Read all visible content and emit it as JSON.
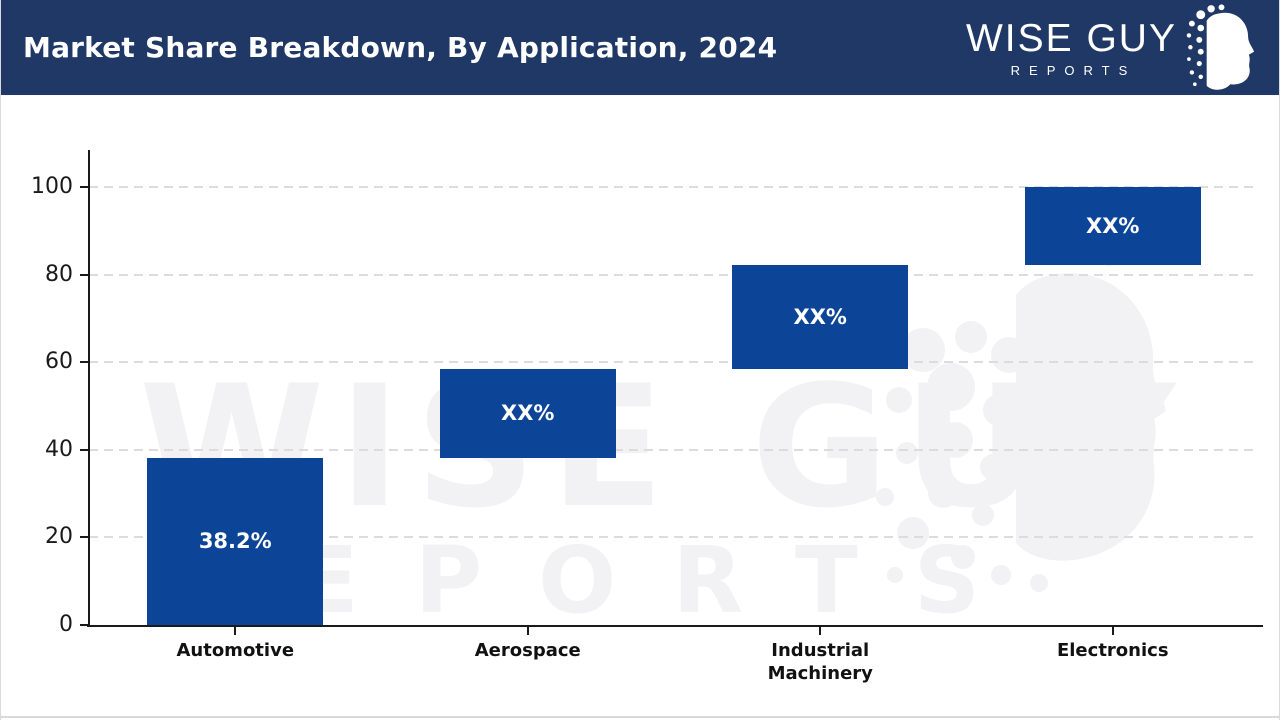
{
  "header": {
    "title": "Market Share Breakdown, By Application, 2024",
    "background_color": "#1f3865",
    "logo": {
      "line1": "WISE GUY",
      "line2": "REPORTS"
    }
  },
  "watermark": {
    "line1": "WISE GUY",
    "line2": "REPORTS"
  },
  "chart_data": {
    "type": "waterfall",
    "title": "Market Share Breakdown, By Application, 2024",
    "categories": [
      "Automotive",
      "Aerospace",
      "Industrial Machinery",
      "Electronics"
    ],
    "segments": [
      {
        "category": "Automotive",
        "start": 0,
        "end": 38.2,
        "label": "38.2%"
      },
      {
        "category": "Aerospace",
        "start": 38.2,
        "end": 58.5,
        "label": "XX%"
      },
      {
        "category": "Industrial Machinery",
        "start": 58.5,
        "end": 82.3,
        "label": "XX%"
      },
      {
        "category": "Electronics",
        "start": 82.3,
        "end": 100,
        "label": "XX%"
      }
    ],
    "ylim": [
      0,
      100
    ],
    "yticks": [
      0,
      20,
      40,
      60,
      80,
      100
    ],
    "grid": "horizontal-dashed",
    "legend": "none",
    "bar_color": "#0c4598",
    "value_label_color": "#ffffff",
    "axis_color": "#1a1a1a"
  }
}
